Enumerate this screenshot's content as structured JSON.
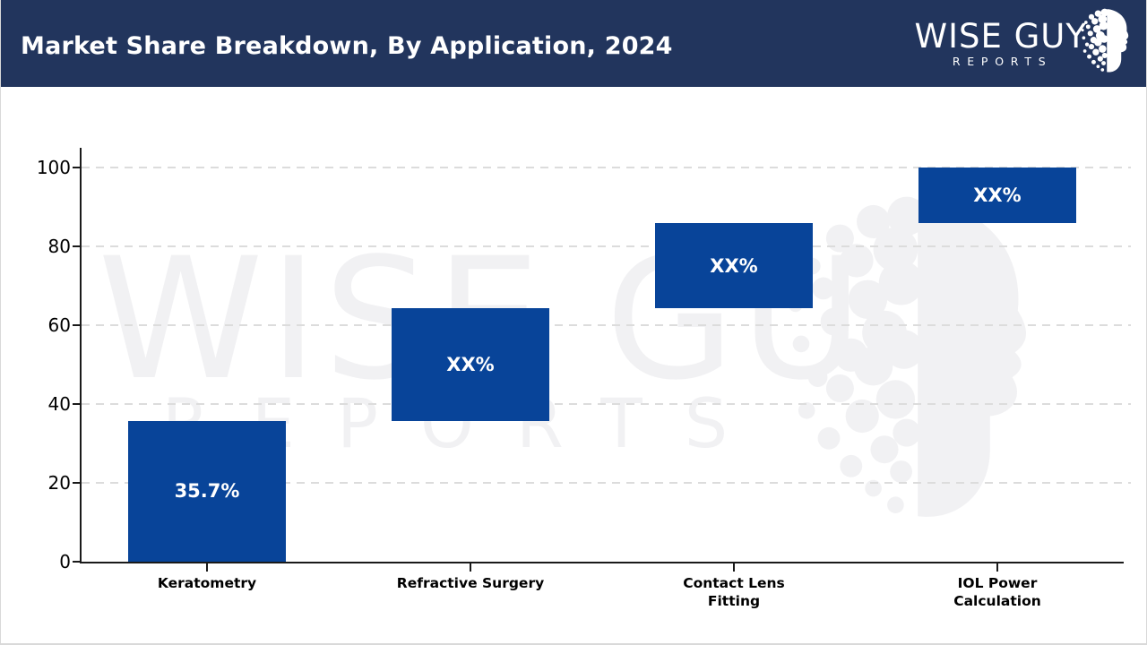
{
  "header": {
    "title": "Market Share Breakdown, By Application, 2024",
    "logo": {
      "line1": "WISE GUY",
      "line2": "REPORTS"
    }
  },
  "watermark": {
    "line1": "WISE GU",
    "line2": "REPORTS"
  },
  "chart_data": {
    "type": "bar",
    "subtype": "waterfall-segment-chart",
    "title": "Market Share Breakdown, By Application, 2024",
    "categories": [
      "Keratometry",
      "Refractive Surgery",
      "Contact Lens\nFitting",
      "IOL Power\nCalculation"
    ],
    "segments": [
      {
        "category": "Keratometry",
        "start": 0,
        "end": 35.7,
        "label": "35.7%"
      },
      {
        "category": "Refractive Surgery",
        "start": 35.7,
        "end": 64.3,
        "label": "XX%"
      },
      {
        "category": "Contact Lens Fitting",
        "start": 64.3,
        "end": 85.9,
        "label": "XX%"
      },
      {
        "category": "IOL Power Calculation",
        "start": 85.9,
        "end": 100,
        "label": "XX%"
      }
    ],
    "yticks": [
      0,
      20,
      40,
      60,
      80,
      100
    ],
    "ylim": [
      0,
      105
    ],
    "grid": "horizontal-dashed",
    "legend": "none",
    "bar_color": "#084499",
    "bar_label_color": "#ffffff",
    "axis_color": "#1a1a1a",
    "grid_color": "#dcdcdc"
  },
  "colors": {
    "header_bg": "#22355d",
    "header_text": "#ffffff",
    "watermark": "#f1f1f3",
    "background": "#ffffff",
    "border": "#d9d9d9"
  }
}
